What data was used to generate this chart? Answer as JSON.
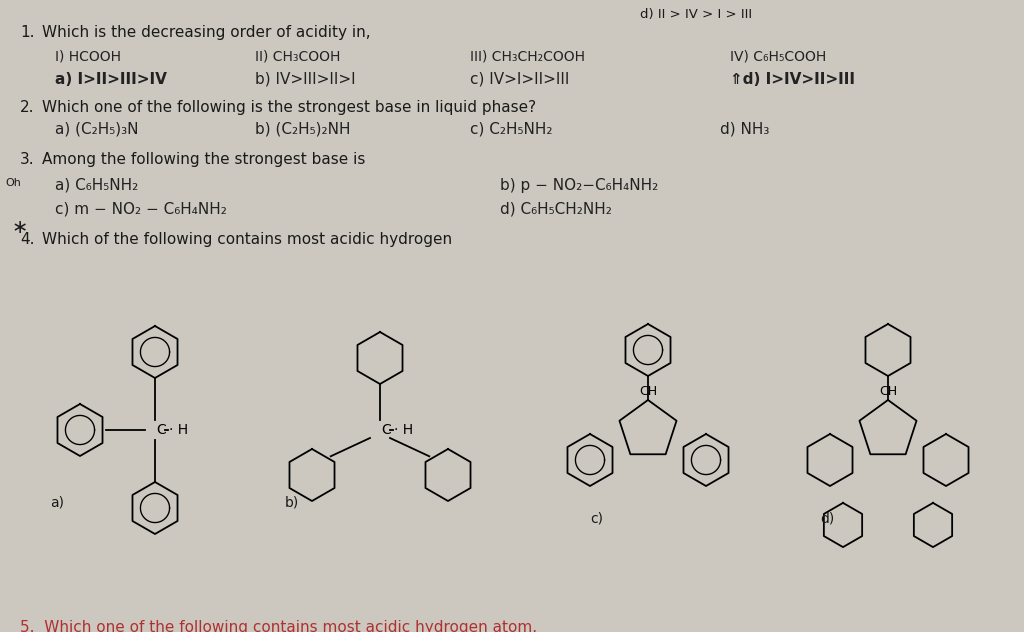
{
  "bg_color": "#ccc8c0",
  "text_color": "#1a1a1a",
  "red_color": "#b03030",
  "dark_color": "#222222",
  "figsize": [
    10.24,
    6.32
  ],
  "dpi": 100,
  "top_partial": "d) II > IV > I > III",
  "q1_title": "Which is the decreasing order of acidity in,",
  "q1_compounds": [
    "I) HCOOH",
    "II) CH₃COOH",
    "III) CH₃CH₂COOH",
    "IV) C₆H₅COOH"
  ],
  "q1_ans": [
    "a) I>II>III>IV",
    "b) IV>III>II>I",
    "c) IV>I>II>III",
    "d) I>IV>II>III"
  ],
  "q2_title": "Which one of the following is the strongest base in liquid phase?",
  "q2_ans": [
    "a) (C₂H₅)₃N",
    "b) (C₂H₅)₂NH",
    "c) C₂H₅NH₂",
    "d) NH₃"
  ],
  "q3_title": "Among the following the strongest base is",
  "q3_left": [
    "a) C₆H₅NH₂",
    "c) m − NO₂ − C₆H₄NH₂"
  ],
  "q3_right": [
    "b) p − NO₂−C₆H₄NH₂",
    "d) C₆H₅CH₂NH₂"
  ],
  "q4_title": "Which of the following contains most acidic hydrogen",
  "q5_text": "5.  Which one of the following contains most acidic hydrogen atom.",
  "struct_a_label": "a)",
  "struct_b_label": "b)",
  "struct_c_label": "c)",
  "struct_d_label": "d)"
}
